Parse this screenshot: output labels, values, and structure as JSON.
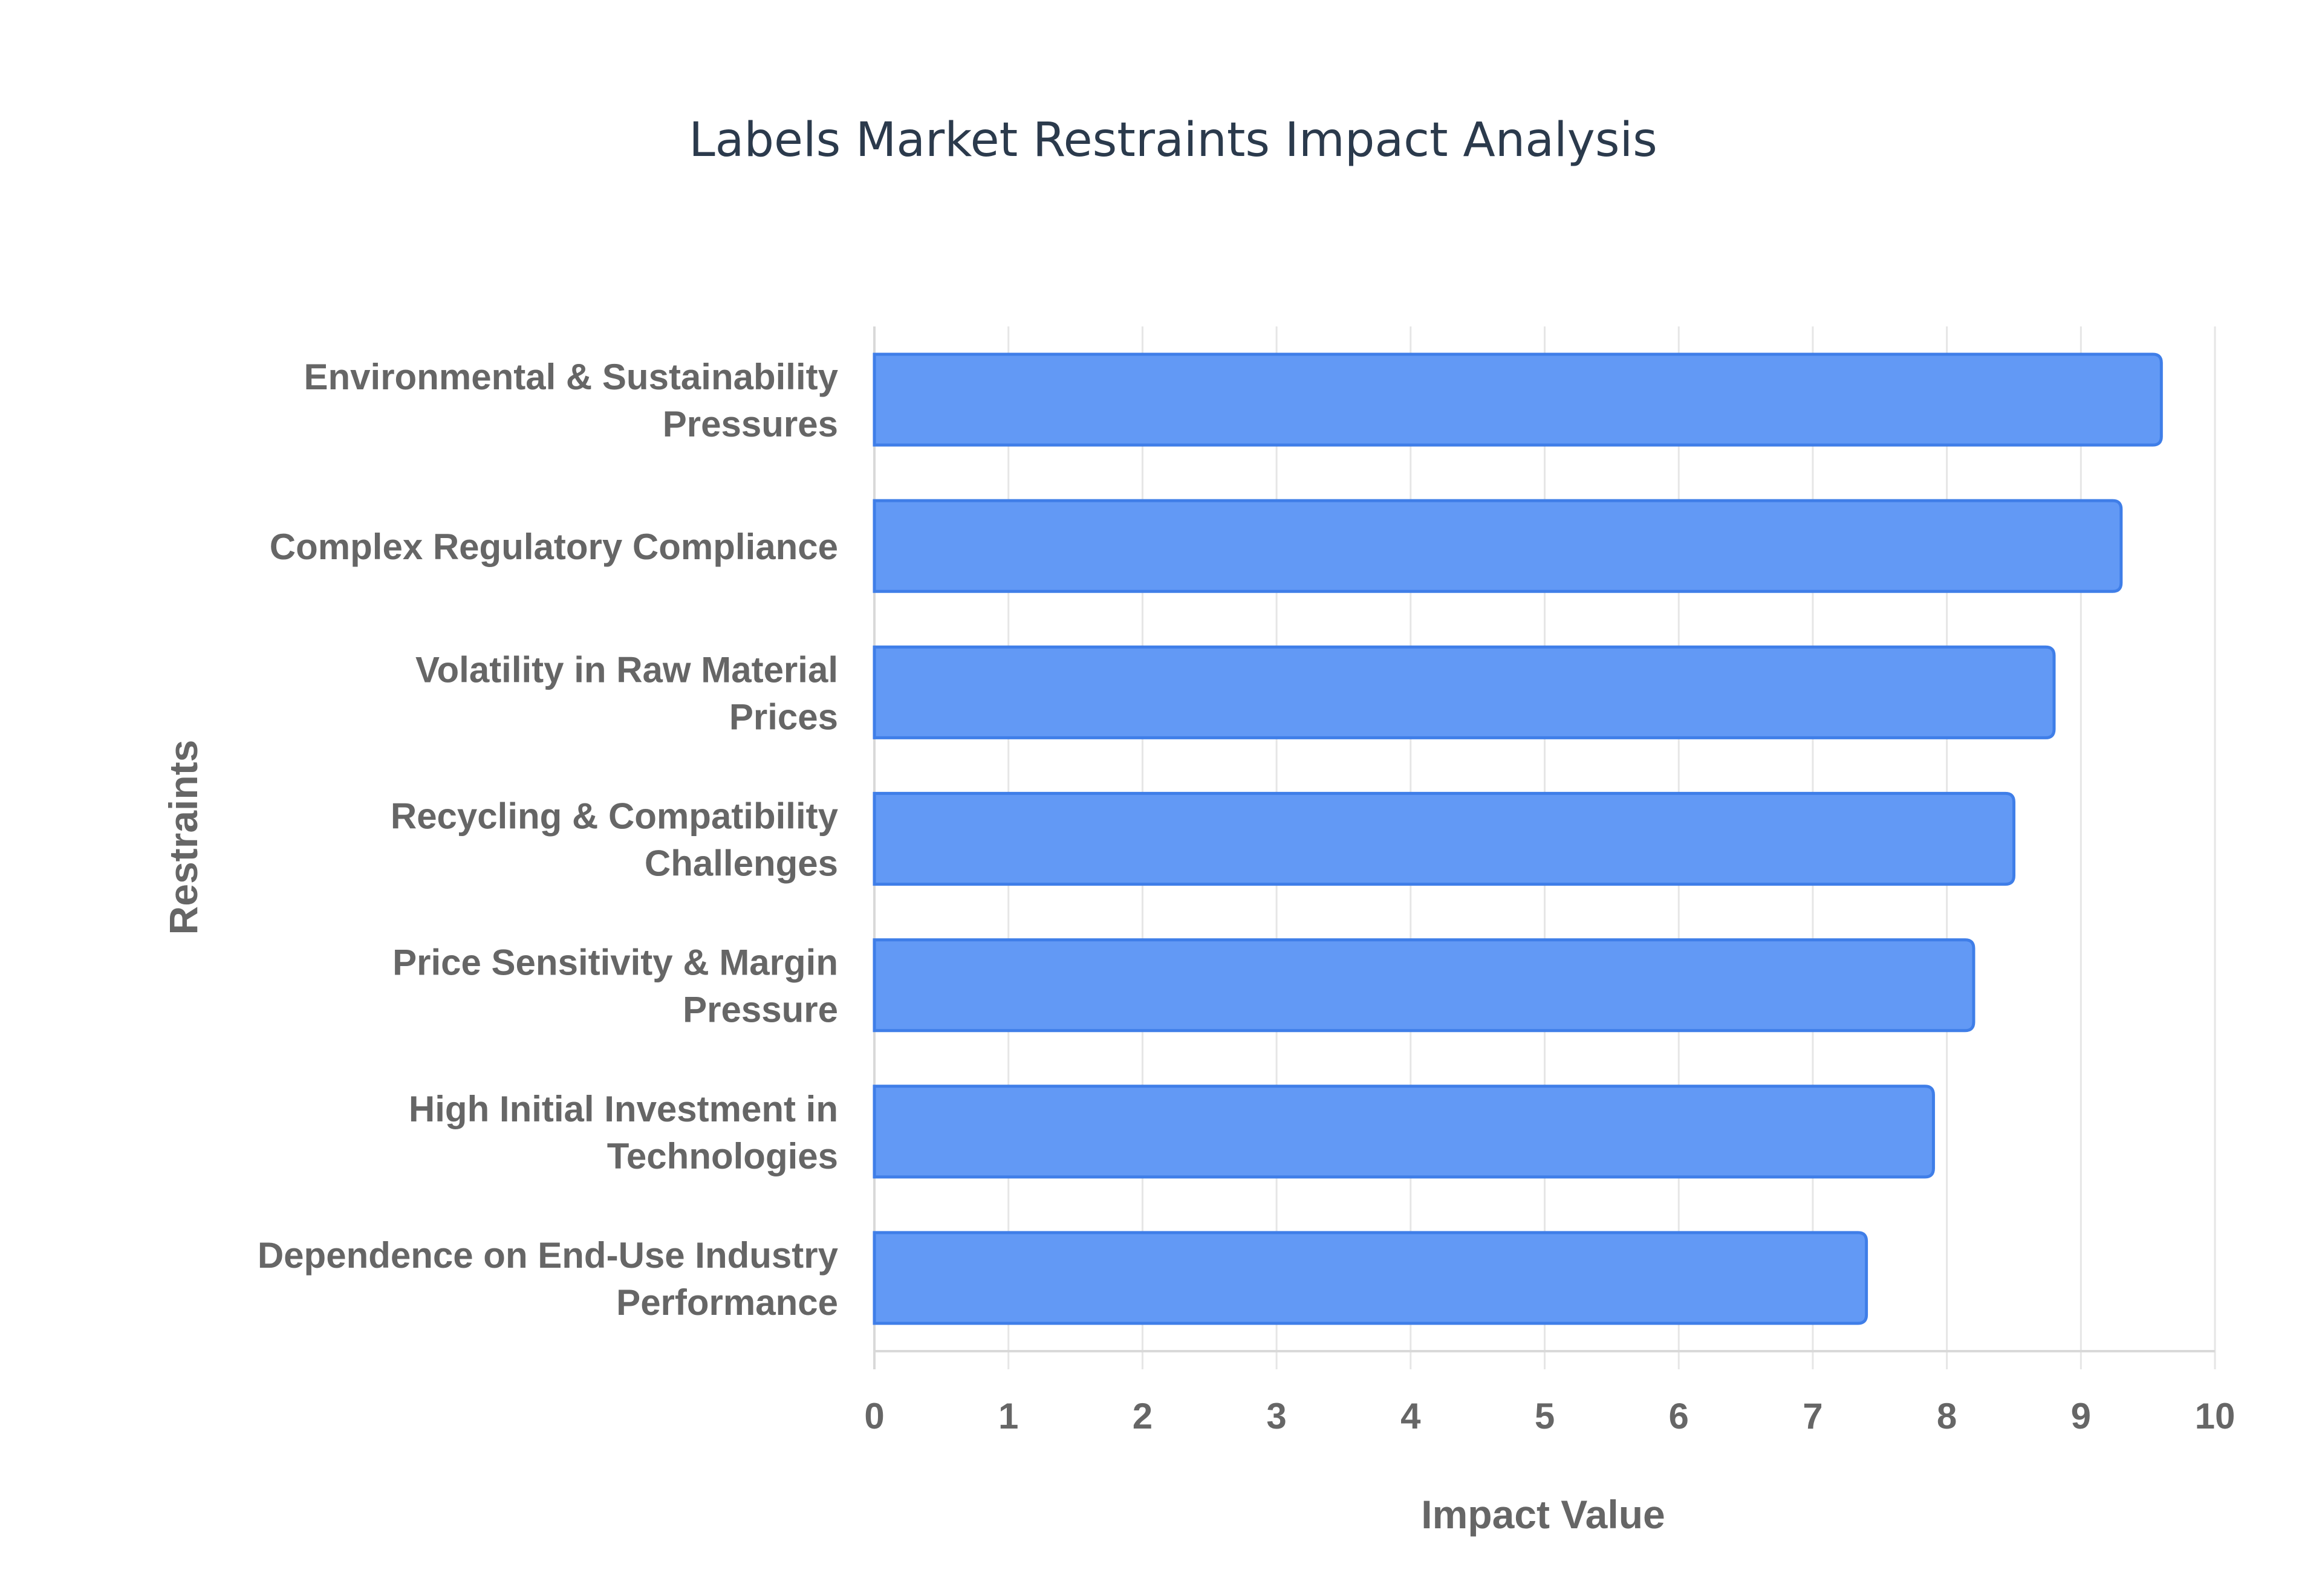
{
  "chart_data": {
    "type": "bar",
    "orientation": "horizontal",
    "title": "Labels Market Restraints Impact Analysis",
    "xlabel": "Impact Value",
    "ylabel": "Restraints",
    "categories": [
      [
        "Environmental & Sustainability",
        "Pressures"
      ],
      [
        "Complex Regulatory Compliance"
      ],
      [
        "Volatility in Raw Material",
        "Prices"
      ],
      [
        "Recycling & Compatibility",
        "Challenges"
      ],
      [
        "Price Sensitivity & Margin",
        "Pressure"
      ],
      [
        "High Initial Investment in",
        "Technologies"
      ],
      [
        "Dependence on End-Use Industry",
        "Performance"
      ]
    ],
    "values": [
      9.6,
      9.3,
      8.8,
      8.5,
      8.2,
      7.9,
      7.4
    ],
    "xlim": [
      0,
      10
    ],
    "xticks": [
      "0",
      "1",
      "2",
      "3",
      "4",
      "5",
      "6",
      "7",
      "8",
      "9",
      "10"
    ],
    "grid": true,
    "bar_color": "#6299f5",
    "bar_border_color": "#3f7ee8"
  }
}
